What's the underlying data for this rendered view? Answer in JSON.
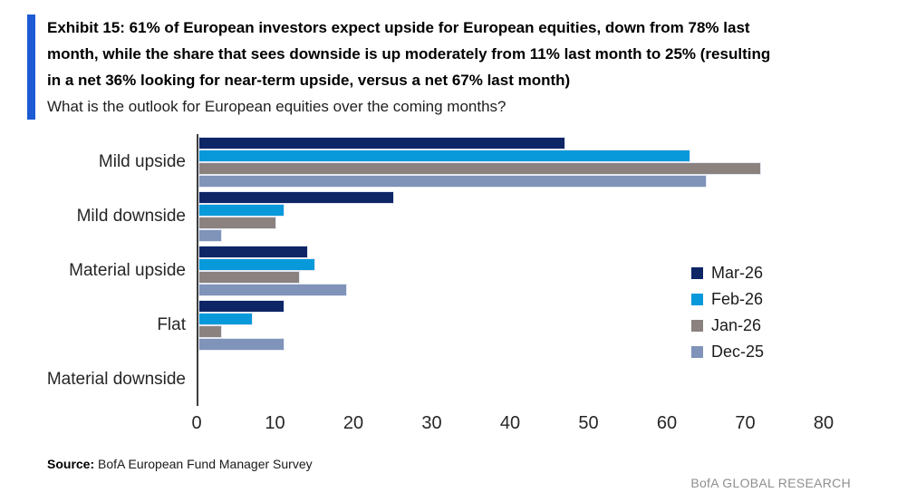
{
  "header": {
    "accent_color": "#1c5bd4",
    "lines": [
      "Exhibit 15: 61% of European investors expect upside for European equities, down from 78% last",
      "month, while the share that sees downside is up moderately from 11% last month to 25% (resulting",
      "in a net 36% looking for near-term upside, versus a net 67% last month)"
    ],
    "subtitle": "What is the outlook for European equities over the coming months?"
  },
  "chart_data": {
    "type": "bar",
    "orientation": "horizontal",
    "title": "What is the outlook for European equities over the coming months?",
    "categories": [
      "Mild upside",
      "Mild downside",
      "Material upside",
      "Flat",
      "Material downside"
    ],
    "series": [
      {
        "name": "Mar-26",
        "color": "#0e2566",
        "values": [
          47,
          25,
          14,
          11,
          0
        ]
      },
      {
        "name": "Feb-26",
        "color": "#0899db",
        "values": [
          63,
          11,
          15,
          7,
          0
        ]
      },
      {
        "name": "Jan-26",
        "color": "#8b8280",
        "values": [
          72,
          10,
          13,
          3,
          0
        ]
      },
      {
        "name": "Dec-25",
        "color": "#8093b9",
        "values": [
          65,
          3,
          19,
          11,
          0
        ]
      }
    ],
    "xlabel": "",
    "ylabel": "",
    "xlim": [
      0,
      80
    ],
    "xticks": [
      0,
      10,
      20,
      30,
      40,
      50,
      60,
      70,
      80
    ],
    "grid": false,
    "legend_position": "right",
    "axis_color": "#3d3d3d"
  },
  "footer": {
    "source_label": "Source:",
    "source_text": " BofA European Fund Manager Survey",
    "brand": "BofA GLOBAL RESEARCH"
  }
}
